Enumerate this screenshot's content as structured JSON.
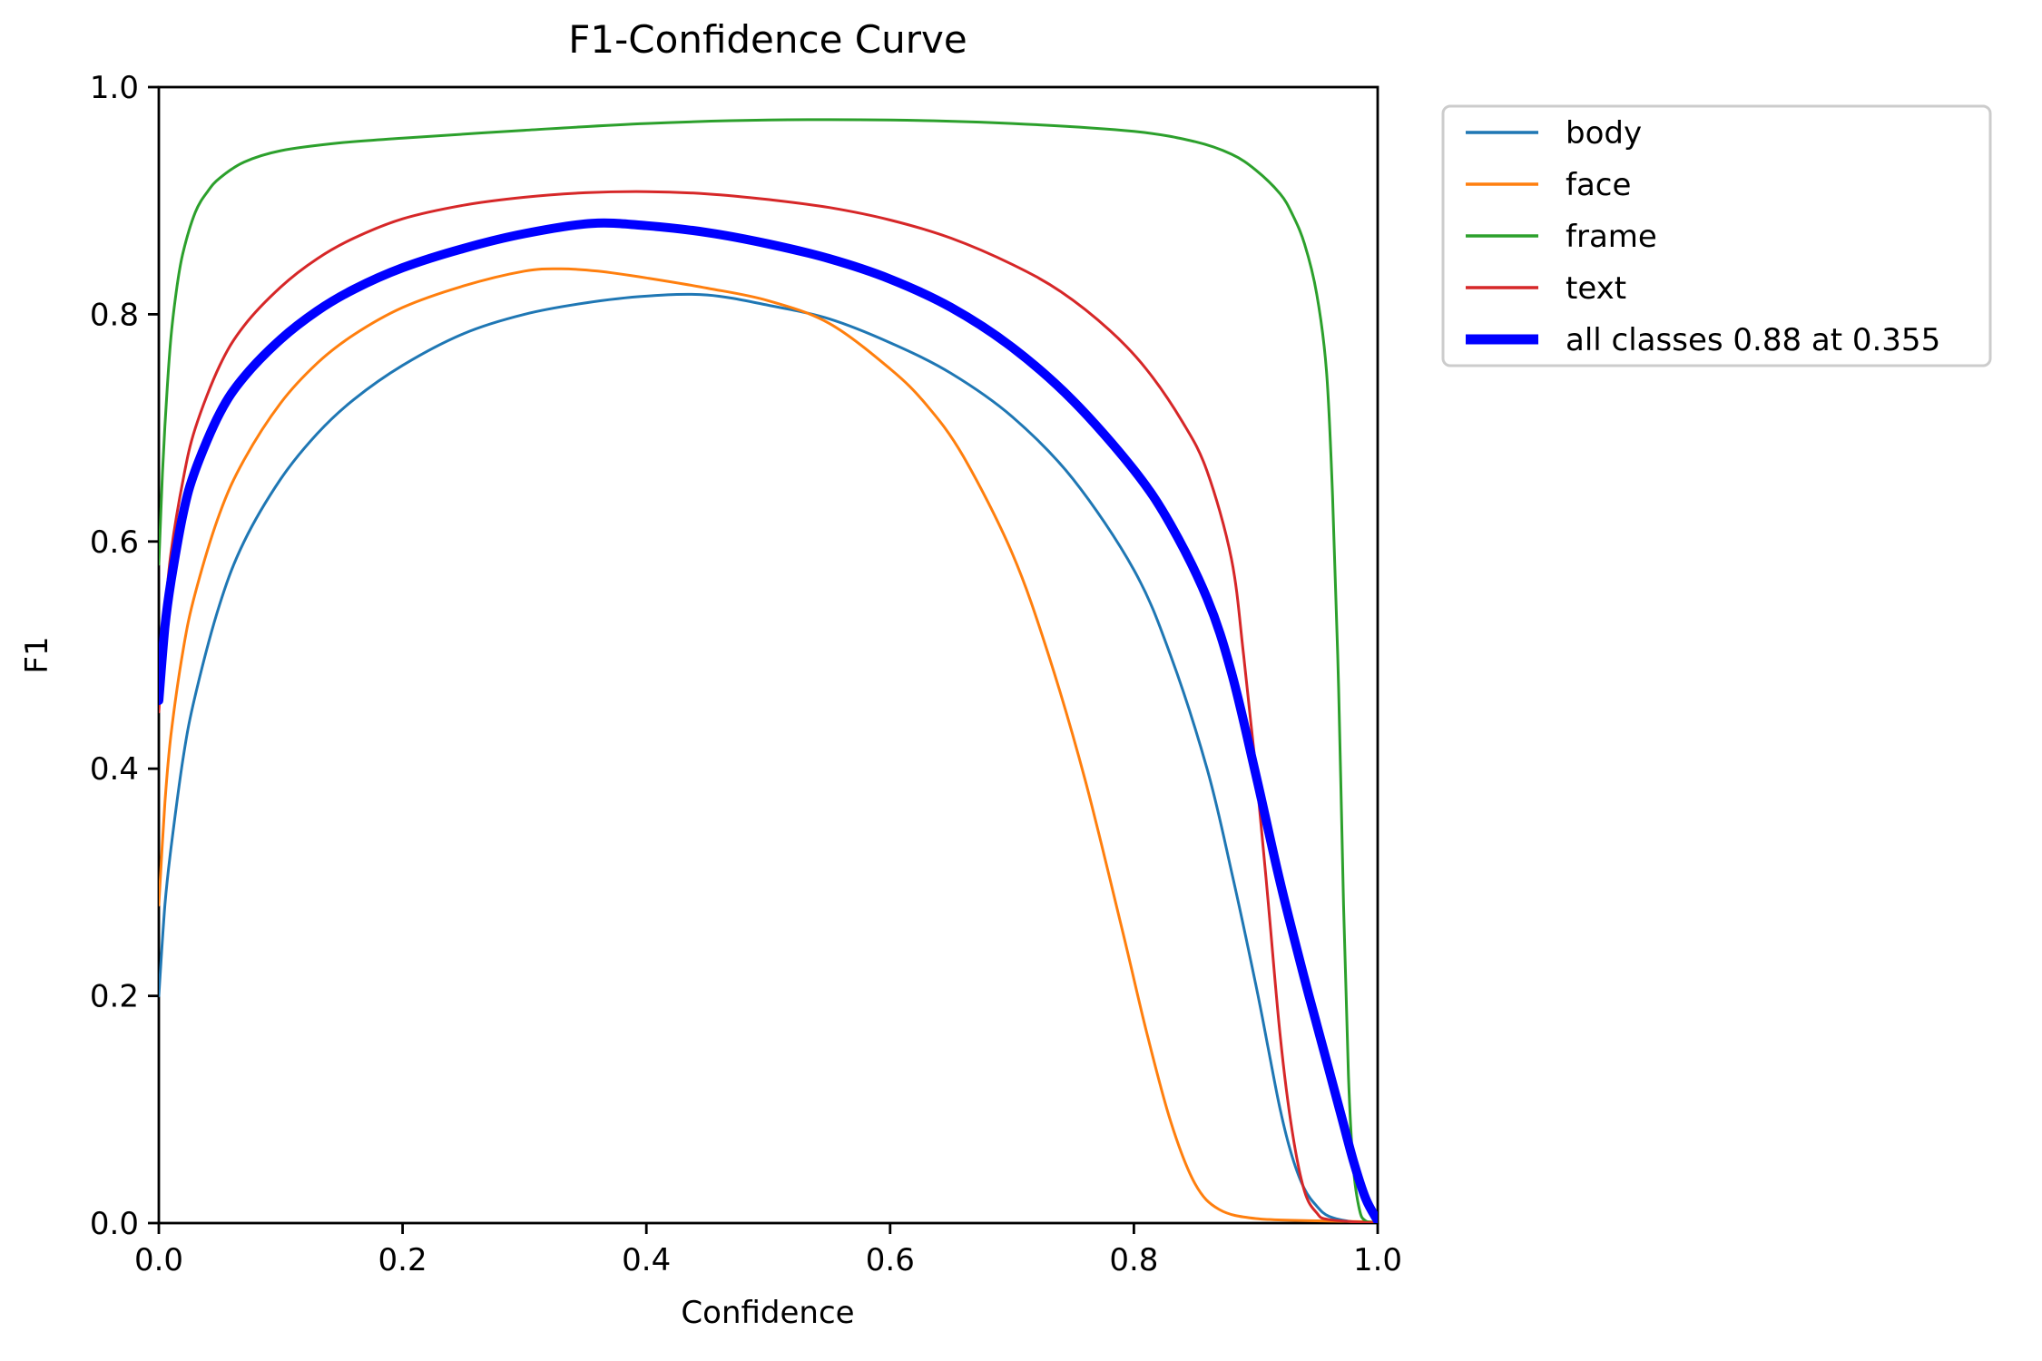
{
  "chart_data": {
    "type": "line",
    "title": "F1-Confidence Curve",
    "xlabel": "Confidence",
    "ylabel": "F1",
    "xlim": [
      0.0,
      1.0
    ],
    "ylim": [
      0.0,
      1.0
    ],
    "x_tick_values": [
      0.0,
      0.2,
      0.4,
      0.6,
      0.8,
      1.0
    ],
    "x_tick_labels": [
      "0.0",
      "0.2",
      "0.4",
      "0.6",
      "0.8",
      "1.0"
    ],
    "y_tick_values": [
      0.0,
      0.2,
      0.4,
      0.6,
      0.8,
      1.0
    ],
    "y_tick_labels": [
      "0.0",
      "0.2",
      "0.4",
      "0.6",
      "0.8",
      "1.0"
    ],
    "grid": false,
    "legend_position": "outside-upper-right",
    "all_classes_best": {
      "f1": 0.88,
      "confidence": 0.355
    },
    "series": [
      {
        "name": "body",
        "label": "body",
        "color": "#1f77b4",
        "line_width": 3,
        "points": [
          [
            0,
            0.2
          ],
          [
            0.005,
            0.28
          ],
          [
            0.01,
            0.33
          ],
          [
            0.02,
            0.41
          ],
          [
            0.03,
            0.465
          ],
          [
            0.05,
            0.545
          ],
          [
            0.07,
            0.6
          ],
          [
            0.1,
            0.655
          ],
          [
            0.13,
            0.695
          ],
          [
            0.16,
            0.725
          ],
          [
            0.2,
            0.755
          ],
          [
            0.25,
            0.783
          ],
          [
            0.3,
            0.8
          ],
          [
            0.35,
            0.81
          ],
          [
            0.4,
            0.816
          ],
          [
            0.45,
            0.817
          ],
          [
            0.5,
            0.808
          ],
          [
            0.55,
            0.796
          ],
          [
            0.6,
            0.775
          ],
          [
            0.65,
            0.748
          ],
          [
            0.7,
            0.71
          ],
          [
            0.75,
            0.655
          ],
          [
            0.8,
            0.575
          ],
          [
            0.83,
            0.5
          ],
          [
            0.86,
            0.4
          ],
          [
            0.88,
            0.31
          ],
          [
            0.9,
            0.21
          ],
          [
            0.91,
            0.155
          ],
          [
            0.92,
            0.1
          ],
          [
            0.93,
            0.058
          ],
          [
            0.94,
            0.03
          ],
          [
            0.95,
            0.015
          ],
          [
            0.96,
            0.006
          ],
          [
            0.98,
            0.001
          ],
          [
            1.0,
            0.0
          ]
        ]
      },
      {
        "name": "face",
        "label": "face",
        "color": "#ff7f0e",
        "line_width": 3,
        "points": [
          [
            0,
            0.28
          ],
          [
            0.005,
            0.37
          ],
          [
            0.01,
            0.43
          ],
          [
            0.02,
            0.505
          ],
          [
            0.03,
            0.555
          ],
          [
            0.05,
            0.625
          ],
          [
            0.07,
            0.672
          ],
          [
            0.1,
            0.722
          ],
          [
            0.13,
            0.757
          ],
          [
            0.16,
            0.782
          ],
          [
            0.2,
            0.806
          ],
          [
            0.25,
            0.825
          ],
          [
            0.3,
            0.838
          ],
          [
            0.33,
            0.84
          ],
          [
            0.36,
            0.838
          ],
          [
            0.4,
            0.832
          ],
          [
            0.45,
            0.823
          ],
          [
            0.5,
            0.812
          ],
          [
            0.55,
            0.792
          ],
          [
            0.6,
            0.752
          ],
          [
            0.63,
            0.72
          ],
          [
            0.66,
            0.675
          ],
          [
            0.7,
            0.59
          ],
          [
            0.73,
            0.5
          ],
          [
            0.76,
            0.39
          ],
          [
            0.79,
            0.26
          ],
          [
            0.81,
            0.17
          ],
          [
            0.83,
            0.09
          ],
          [
            0.85,
            0.035
          ],
          [
            0.87,
            0.012
          ],
          [
            0.9,
            0.004
          ],
          [
            0.95,
            0.002
          ],
          [
            1.0,
            0.001
          ]
        ]
      },
      {
        "name": "frame",
        "label": "frame",
        "color": "#2ca02c",
        "line_width": 3,
        "points": [
          [
            0,
            0.58
          ],
          [
            0.003,
            0.66
          ],
          [
            0.006,
            0.72
          ],
          [
            0.01,
            0.78
          ],
          [
            0.015,
            0.825
          ],
          [
            0.02,
            0.855
          ],
          [
            0.03,
            0.89
          ],
          [
            0.04,
            0.908
          ],
          [
            0.05,
            0.92
          ],
          [
            0.07,
            0.934
          ],
          [
            0.1,
            0.944
          ],
          [
            0.15,
            0.951
          ],
          [
            0.2,
            0.955
          ],
          [
            0.3,
            0.962
          ],
          [
            0.4,
            0.968
          ],
          [
            0.5,
            0.971
          ],
          [
            0.6,
            0.971
          ],
          [
            0.7,
            0.968
          ],
          [
            0.8,
            0.961
          ],
          [
            0.85,
            0.952
          ],
          [
            0.88,
            0.941
          ],
          [
            0.9,
            0.927
          ],
          [
            0.92,
            0.906
          ],
          [
            0.93,
            0.888
          ],
          [
            0.94,
            0.862
          ],
          [
            0.95,
            0.818
          ],
          [
            0.958,
            0.75
          ],
          [
            0.963,
            0.64
          ],
          [
            0.968,
            0.47
          ],
          [
            0.972,
            0.28
          ],
          [
            0.976,
            0.13
          ],
          [
            0.98,
            0.05
          ],
          [
            0.985,
            0.012
          ],
          [
            0.99,
            0.002
          ],
          [
            1.0,
            0.0
          ]
        ]
      },
      {
        "name": "text",
        "label": "text",
        "color": "#d62728",
        "line_width": 3,
        "points": [
          [
            0,
            0.45
          ],
          [
            0.005,
            0.535
          ],
          [
            0.01,
            0.59
          ],
          [
            0.02,
            0.655
          ],
          [
            0.03,
            0.7
          ],
          [
            0.05,
            0.755
          ],
          [
            0.07,
            0.79
          ],
          [
            0.1,
            0.824
          ],
          [
            0.13,
            0.849
          ],
          [
            0.16,
            0.867
          ],
          [
            0.2,
            0.884
          ],
          [
            0.25,
            0.896
          ],
          [
            0.3,
            0.903
          ],
          [
            0.35,
            0.907
          ],
          [
            0.4,
            0.908
          ],
          [
            0.45,
            0.906
          ],
          [
            0.5,
            0.901
          ],
          [
            0.55,
            0.894
          ],
          [
            0.6,
            0.883
          ],
          [
            0.65,
            0.867
          ],
          [
            0.7,
            0.844
          ],
          [
            0.74,
            0.82
          ],
          [
            0.78,
            0.786
          ],
          [
            0.81,
            0.752
          ],
          [
            0.84,
            0.705
          ],
          [
            0.86,
            0.662
          ],
          [
            0.88,
            0.585
          ],
          [
            0.89,
            0.5
          ],
          [
            0.9,
            0.4
          ],
          [
            0.91,
            0.285
          ],
          [
            0.92,
            0.165
          ],
          [
            0.93,
            0.08
          ],
          [
            0.94,
            0.028
          ],
          [
            0.95,
            0.009
          ],
          [
            0.96,
            0.003
          ],
          [
            1.0,
            0.0
          ]
        ]
      },
      {
        "name": "all-classes",
        "label": "all classes 0.88 at 0.355",
        "color": "#0000ff",
        "line_width": 10,
        "points": [
          [
            0,
            0.46
          ],
          [
            0.005,
            0.525
          ],
          [
            0.01,
            0.565
          ],
          [
            0.02,
            0.625
          ],
          [
            0.03,
            0.663
          ],
          [
            0.05,
            0.713
          ],
          [
            0.07,
            0.745
          ],
          [
            0.1,
            0.778
          ],
          [
            0.13,
            0.803
          ],
          [
            0.16,
            0.822
          ],
          [
            0.2,
            0.841
          ],
          [
            0.25,
            0.858
          ],
          [
            0.3,
            0.871
          ],
          [
            0.355,
            0.88
          ],
          [
            0.4,
            0.878
          ],
          [
            0.45,
            0.872
          ],
          [
            0.5,
            0.862
          ],
          [
            0.55,
            0.849
          ],
          [
            0.6,
            0.831
          ],
          [
            0.65,
            0.806
          ],
          [
            0.7,
            0.771
          ],
          [
            0.75,
            0.724
          ],
          [
            0.8,
            0.663
          ],
          [
            0.83,
            0.615
          ],
          [
            0.86,
            0.55
          ],
          [
            0.88,
            0.485
          ],
          [
            0.9,
            0.395
          ],
          [
            0.92,
            0.3
          ],
          [
            0.94,
            0.215
          ],
          [
            0.95,
            0.175
          ],
          [
            0.96,
            0.135
          ],
          [
            0.97,
            0.095
          ],
          [
            0.98,
            0.055
          ],
          [
            0.99,
            0.022
          ],
          [
            1.0,
            0.002
          ]
        ]
      }
    ],
    "style": {
      "spine_color": "#000000",
      "legend_border_color": "#cccccc",
      "legend_background": "#ffffff",
      "plot_background": "#ffffff"
    }
  }
}
